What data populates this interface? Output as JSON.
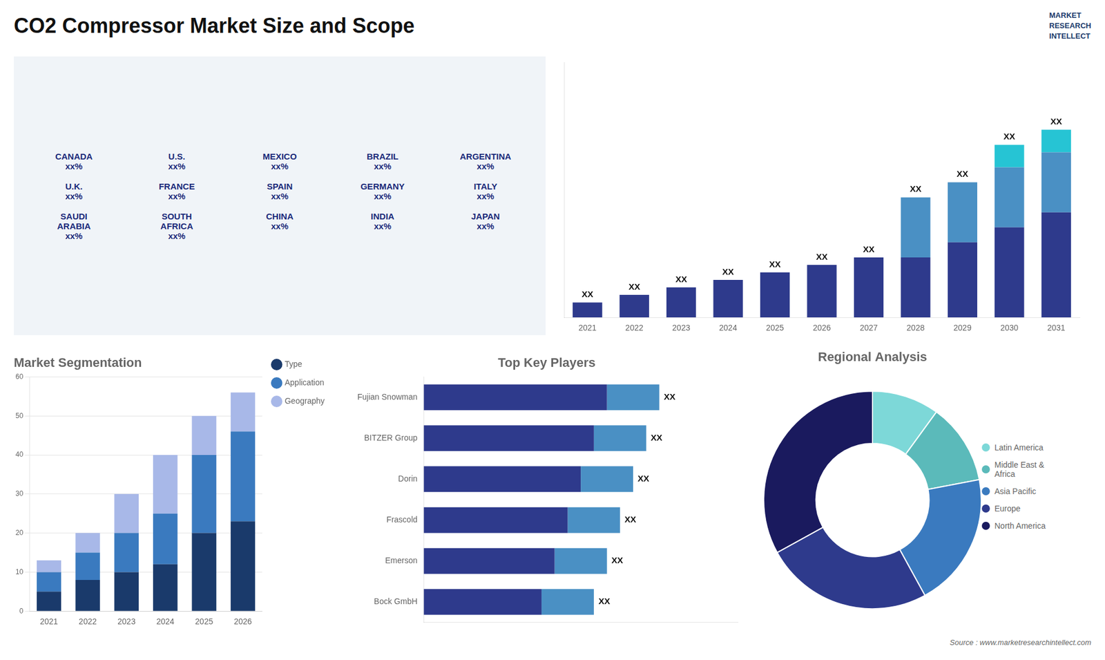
{
  "title": "CO2 Compressor Market Size and Scope",
  "annotations": [
    "Source : www.marketresearchintellect.com",
    "MARKET\nRESEARCH\nINTELLECT"
  ],
  "chart_data": [
    {
      "type": "map",
      "annotations": [
        "CANADA\nxx%",
        "U.S.\nxx%",
        "MEXICO\nxx%",
        "BRAZIL\nxx%",
        "ARGENTINA\nxx%",
        "U.K.\nxx%",
        "FRANCE\nxx%",
        "SPAIN\nxx%",
        "GERMANY\nxx%",
        "ITALY\nxx%",
        "SAUDI\nARABIA\nxx%",
        "SOUTH\nAFRICA\nxx%",
        "CHINA\nxx%",
        "INDIA\nxx%",
        "JAPAN\nxx%"
      ]
    },
    {
      "type": "bar",
      "categories": [
        "2021",
        "2022",
        "2023",
        "2024",
        "2025",
        "2026",
        "2027",
        "2028",
        "2029",
        "2030",
        "2031"
      ],
      "stacked": true,
      "series": [
        {
          "color": "#2e3a8c",
          "values": [
            1,
            1.5,
            2,
            2.5,
            3,
            3.5,
            4,
            4,
            5,
            6,
            7
          ]
        },
        {
          "color": "#4a90c4",
          "values": [
            0,
            0,
            0,
            0,
            0,
            0,
            0,
            4,
            4,
            4,
            4
          ]
        },
        {
          "color": "#26c4d4",
          "values": [
            0,
            0,
            0,
            0,
            0,
            0,
            0,
            0,
            0,
            1.5,
            1.5
          ]
        }
      ],
      "value_labels": [
        "XX",
        "XX",
        "XX",
        "XX",
        "XX",
        "XX",
        "XX",
        "XX",
        "XX",
        "XX",
        "XX"
      ],
      "ylim": [
        0,
        17
      ],
      "grid": false,
      "tick_labels": "x"
    },
    {
      "type": "bar",
      "title": "Market Segmentation",
      "categories": [
        "2021",
        "2022",
        "2023",
        "2024",
        "2025",
        "2026"
      ],
      "stacked": true,
      "series": [
        {
          "name": "Type",
          "color": "#1a3a6b",
          "values": [
            5,
            8,
            10,
            12,
            20,
            23
          ]
        },
        {
          "name": "Application",
          "color": "#3a7abf",
          "values": [
            5,
            7,
            10,
            13,
            20,
            23
          ]
        },
        {
          "name": "Geography",
          "color": "#a8b8e8",
          "values": [
            3,
            5,
            10,
            15,
            10,
            10
          ]
        }
      ],
      "ylim": [
        0,
        60
      ],
      "yticks": [
        0,
        10,
        20,
        30,
        40,
        50,
        60
      ],
      "grid": true,
      "legend": "right"
    },
    {
      "type": "bar",
      "orientation": "horizontal",
      "title": "Top Key Players",
      "categories": [
        "Fujian Snowman",
        "BITZER Group",
        "Dorin",
        "Frascold",
        "Emerson",
        "Bock GmbH"
      ],
      "stacked": true,
      "series": [
        {
          "color": "#2e3a8c",
          "values": [
            7,
            6.5,
            6,
            5.5,
            5,
            4.5
          ]
        },
        {
          "color": "#4a90c4",
          "values": [
            2,
            2,
            2,
            2,
            2,
            2
          ]
        }
      ],
      "value_labels": [
        "XX",
        "XX",
        "XX",
        "XX",
        "XX",
        "XX"
      ],
      "xlim": [
        0,
        12
      ],
      "grid": false,
      "tick_labels": "y"
    },
    {
      "type": "doughnut",
      "title": "Regional Analysis",
      "categories": [
        "Latin America",
        "Middle East &\nAfrica",
        "Asia Pacific",
        "Europe",
        "North America"
      ],
      "values": [
        10,
        12,
        20,
        25,
        33
      ],
      "colors": [
        "#7dd8d8",
        "#5bbaba",
        "#3a7abf",
        "#2e3a8c",
        "#1a1a5e"
      ],
      "legend": "right"
    }
  ]
}
